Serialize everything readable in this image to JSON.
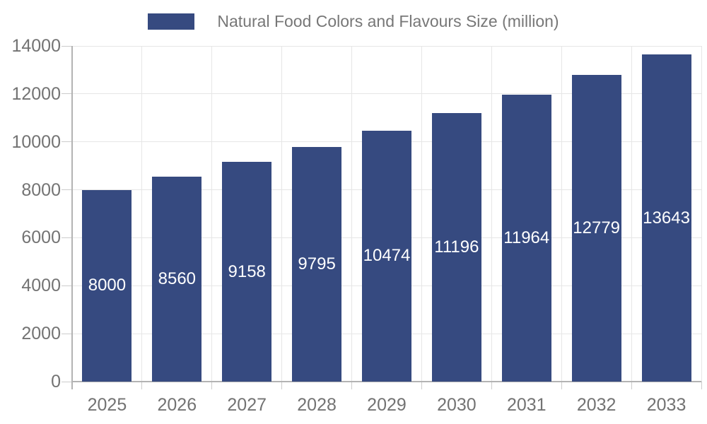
{
  "legend": {
    "label": "Natural Food Colors and Flavours Size (million)"
  },
  "chart_data": {
    "type": "bar",
    "title": "Natural Food Colors and Flavours Size (million)",
    "categories": [
      "2025",
      "2026",
      "2027",
      "2028",
      "2029",
      "2030",
      "2031",
      "2032",
      "2033"
    ],
    "values": [
      8000,
      8560,
      9158,
      9795,
      10474,
      11196,
      11964,
      12779,
      13643
    ],
    "value_labels": [
      "8000",
      "8560",
      "9158",
      "9795",
      "10474",
      "11196",
      "11964",
      "12779",
      "13643"
    ],
    "xlabel": "",
    "ylabel": "",
    "ylim": [
      0,
      14000
    ],
    "yticks": [
      0,
      2000,
      4000,
      6000,
      8000,
      10000,
      12000,
      14000
    ],
    "ytick_labels": [
      "0",
      "2000",
      "4000",
      "6000",
      "8000",
      "10000",
      "12000",
      "14000"
    ],
    "grid": true,
    "legend_position": "top-center",
    "colors": {
      "bar": "#364A80",
      "grid": "#e6e6e6",
      "axis_line": "#b3b3b3",
      "tick_mark": "#cccccc",
      "tick_text": "#737373",
      "legend_text": "#777777",
      "value_label": "#ffffff",
      "background": "#ffffff"
    }
  }
}
